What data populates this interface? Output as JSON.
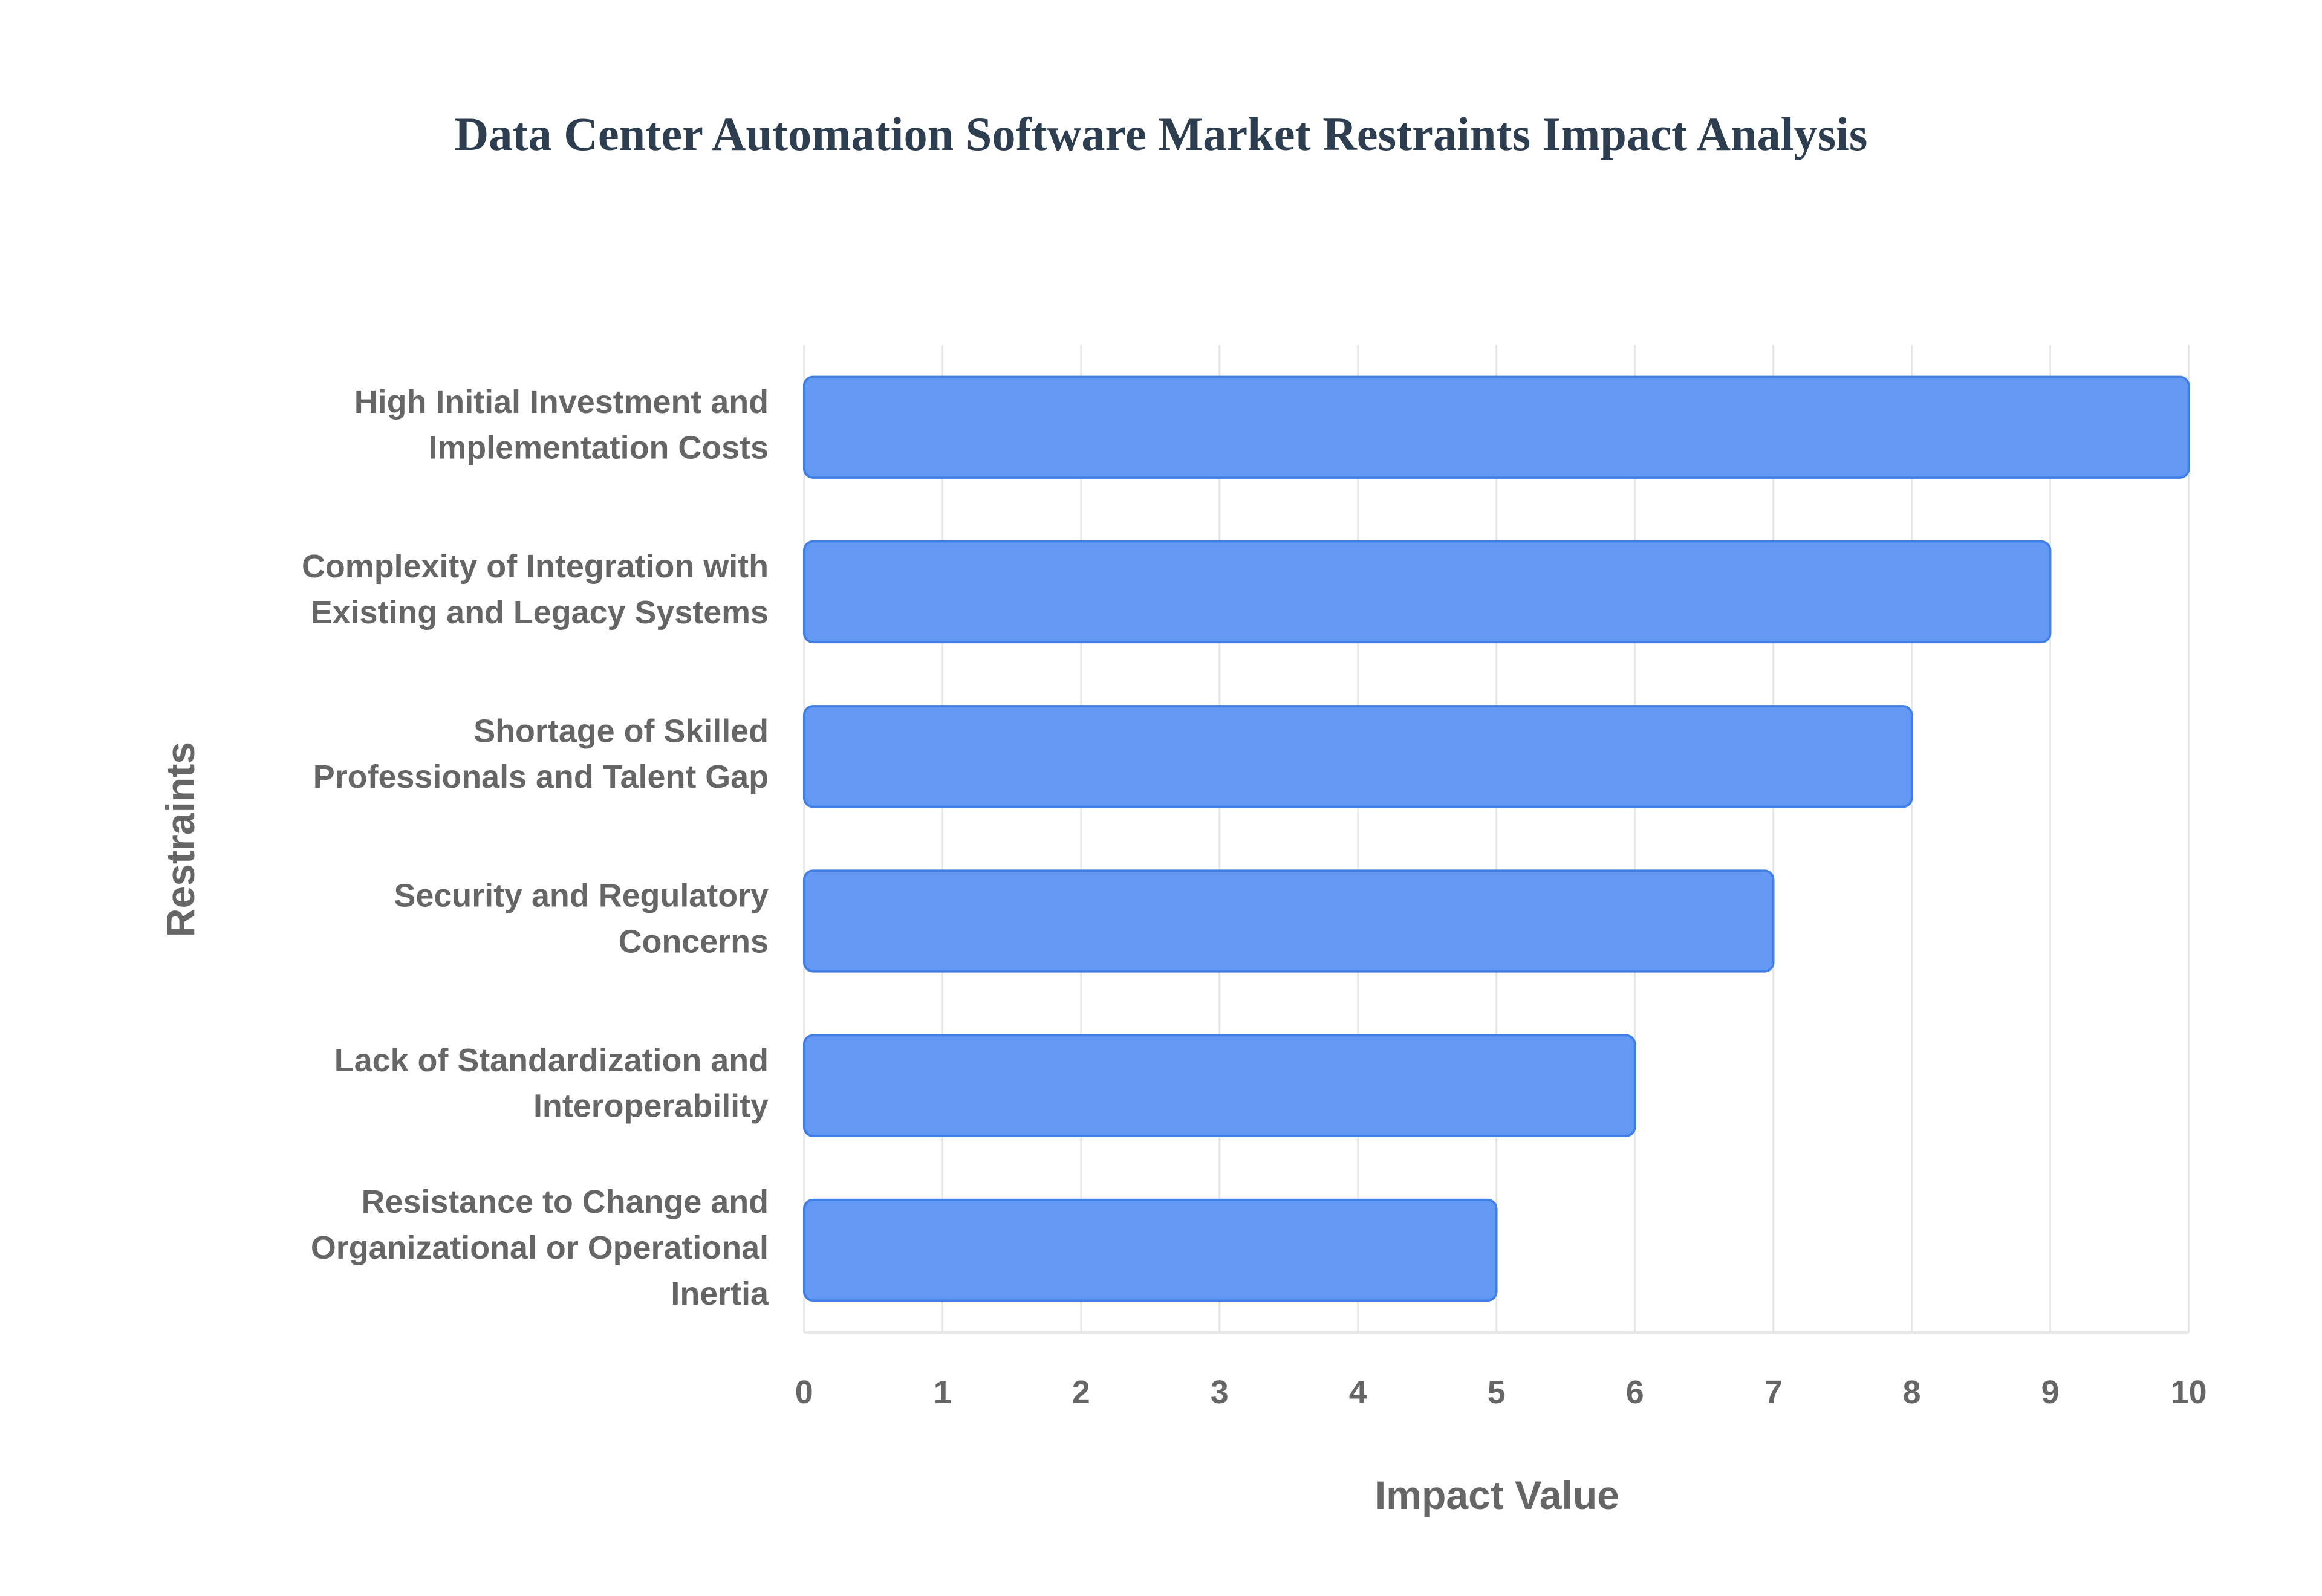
{
  "chart_data": {
    "type": "barh",
    "title": "Data Center Automation Software Market Restraints Impact Analysis",
    "x_label": "Impact Value",
    "y_label": "Restraints",
    "categories": [
      "High Initial Investment and Implementation Costs",
      "Complexity of Integration with Existing and Legacy Systems",
      "Shortage of Skilled Professionals and Talent Gap",
      "Security and Regulatory Concerns",
      "Lack of Standardization and Interoperability",
      "Resistance to Change and Organizational or Operational Inertia"
    ],
    "values": [
      10,
      9,
      8,
      7,
      6,
      5
    ],
    "color": "#6399f5",
    "edge_color": "#3f7fe6",
    "xlim": [
      0,
      10
    ],
    "xticks": [
      0,
      1,
      2,
      3,
      4,
      5,
      6,
      7,
      8,
      9,
      10
    ],
    "grid": true
  }
}
